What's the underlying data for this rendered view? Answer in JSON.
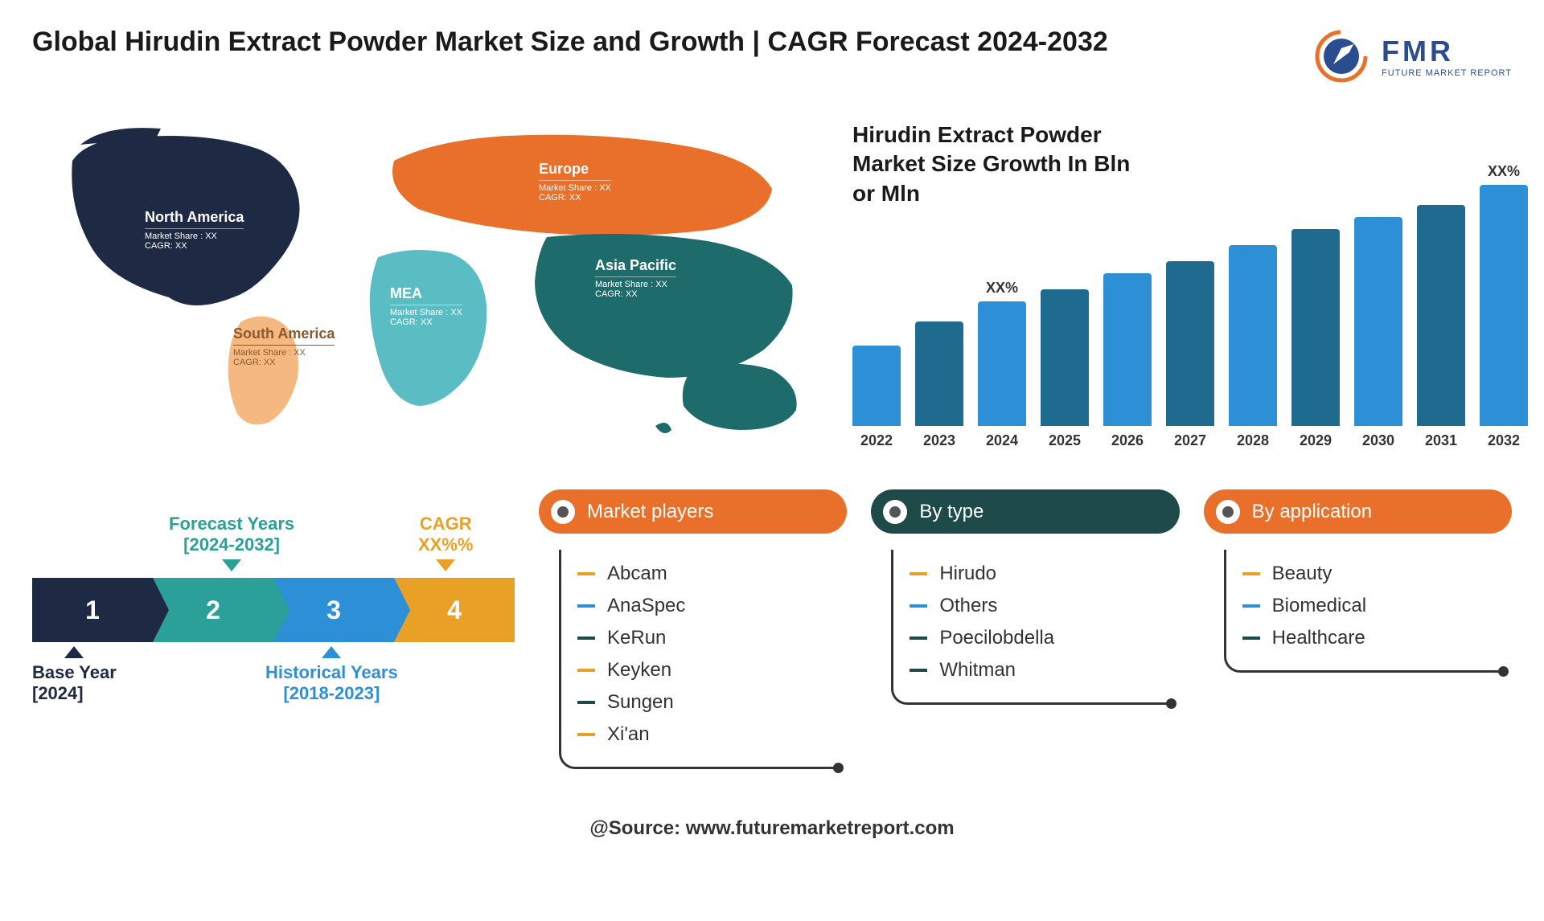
{
  "header": {
    "title": "Global Hirudin Extract Powder Market Size and Growth | CAGR Forecast 2024-2032",
    "logo_fmr": "FMR",
    "logo_sub": "FUTURE MARKET REPORT"
  },
  "map": {
    "regions": {
      "north_america": {
        "name": "North America",
        "share": "Market Share : XX",
        "cagr": "CAGR: XX",
        "color": "#1e2a44"
      },
      "south_america": {
        "name": "South America",
        "share": "Market Share : XX",
        "cagr": "CAGR: XX",
        "color": "#f5b880"
      },
      "europe": {
        "name": "Europe",
        "share": "Market Share : XX",
        "cagr": "CAGR: XX",
        "color": "#e8702a"
      },
      "mea": {
        "name": "MEA",
        "share": "Market Share : XX",
        "cagr": "CAGR: XX",
        "color": "#5bbdc4"
      },
      "asia_pacific": {
        "name": "Asia Pacific",
        "share": "Market Share : XX",
        "cagr": "CAGR: XX",
        "color": "#1e6b6b"
      }
    }
  },
  "chart": {
    "title": "Hirudin Extract Powder Market Size Growth In Bln or Mln",
    "type": "bar",
    "years": [
      "2022",
      "2023",
      "2024",
      "2025",
      "2026",
      "2027",
      "2028",
      "2029",
      "2030",
      "2031",
      "2032"
    ],
    "heights": [
      100,
      130,
      155,
      170,
      190,
      205,
      225,
      245,
      260,
      275,
      300
    ],
    "annot1": {
      "text": "XX%",
      "index": 2
    },
    "annot2": {
      "text": "XX%",
      "index": 10
    },
    "colors": [
      "#2d8fd6",
      "#1e6b8f",
      "#2d8fd6",
      "#1e6b8f",
      "#2d8fd6",
      "#1e6b8f",
      "#2d8fd6",
      "#1e6b8f",
      "#2d8fd6",
      "#1e6b8f",
      "#2d8fd6"
    ],
    "background_color": "#ffffff"
  },
  "timeline": {
    "forecast_label": "Forecast Years",
    "forecast_range": "[2024-2032]",
    "cagr_label": "CAGR",
    "cagr_value": "XX%%",
    "base_label": "Base Year",
    "base_value": "[2024]",
    "hist_label": "Historical Years",
    "hist_range": "[2018-2023]",
    "segments": [
      "1",
      "2",
      "3",
      "4"
    ],
    "colors": {
      "seg1": "#1e2a44",
      "seg2": "#2aa098",
      "seg3": "#2d8fd6",
      "seg4": "#e8a027"
    }
  },
  "categories": {
    "players": {
      "title": "Market players",
      "header_color": "#e8702a",
      "items": [
        "Abcam",
        "AnaSpec",
        "KeRun",
        "Keyken",
        "Sungen",
        "Xi'an"
      ],
      "bullet_colors": [
        "#e8a027",
        "#2d8fd6",
        "#1e4a4a",
        "#e8a027",
        "#1e4a4a",
        "#e8a027"
      ]
    },
    "type": {
      "title": "By type",
      "header_color": "#1e4a4a",
      "items": [
        "Hirudo",
        "Others",
        "Poecilobdella",
        "Whitman"
      ],
      "bullet_colors": [
        "#e8a027",
        "#2d8fd6",
        "#1e4a4a",
        "#1e4a4a"
      ]
    },
    "application": {
      "title": "By application",
      "header_color": "#e8702a",
      "items": [
        "Beauty",
        "Biomedical",
        "Healthcare"
      ],
      "bullet_colors": [
        "#e8a027",
        "#2d8fd6",
        "#1e4a4a"
      ]
    }
  },
  "source": "@Source: www.futuremarketreport.com"
}
